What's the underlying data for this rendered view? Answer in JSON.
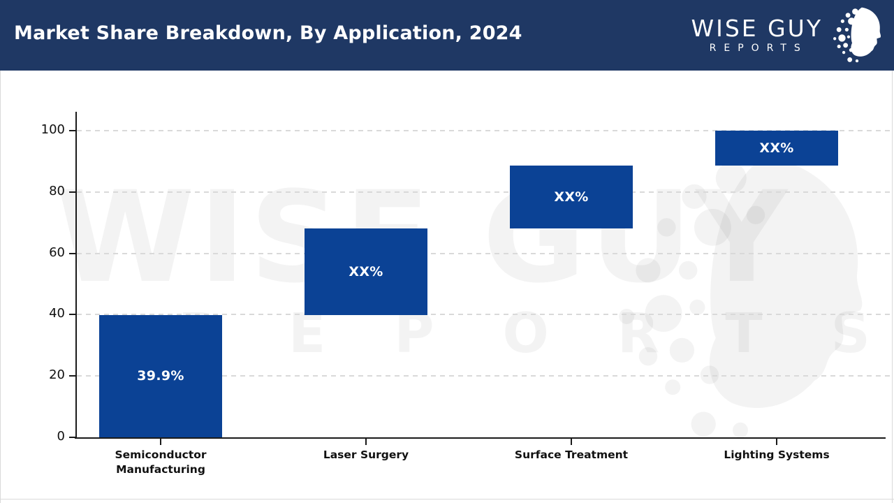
{
  "header": {
    "title": "Market Share Breakdown, By Application, 2024",
    "logo": {
      "wordmark": "WISE GUY",
      "subtext": "REPORTS"
    }
  },
  "watermark": {
    "line1": "WISE GUY",
    "line2": "REPORTS"
  },
  "chart_data": {
    "type": "bar",
    "subtype": "waterfall",
    "title": "Market Share Breakdown, By Application, 2024",
    "xlabel": "",
    "ylabel": "",
    "ylim": [
      0,
      105
    ],
    "yticks": [
      0,
      20,
      40,
      60,
      80,
      100
    ],
    "grid": "horizontal-dashed",
    "legend": "none",
    "bar_color": "#0b4295",
    "categories": [
      "Semiconductor Manufacturing",
      "Laser Surgery",
      "Surface Treatment",
      "Lighting Systems"
    ],
    "segments": [
      {
        "category": "Semiconductor Manufacturing",
        "start": 0,
        "end": 39.9,
        "label": "39.9%"
      },
      {
        "category": "Laser Surgery",
        "start": 39.9,
        "end": 68,
        "label": "XX%"
      },
      {
        "category": "Surface Treatment",
        "start": 68,
        "end": 88.5,
        "label": "XX%"
      },
      {
        "category": "Lighting Systems",
        "start": 88.5,
        "end": 100,
        "label": "XX%"
      }
    ]
  },
  "colors": {
    "header_bg": "#1f3864",
    "bar": "#0b4295",
    "gridline": "#d9d9d9"
  }
}
